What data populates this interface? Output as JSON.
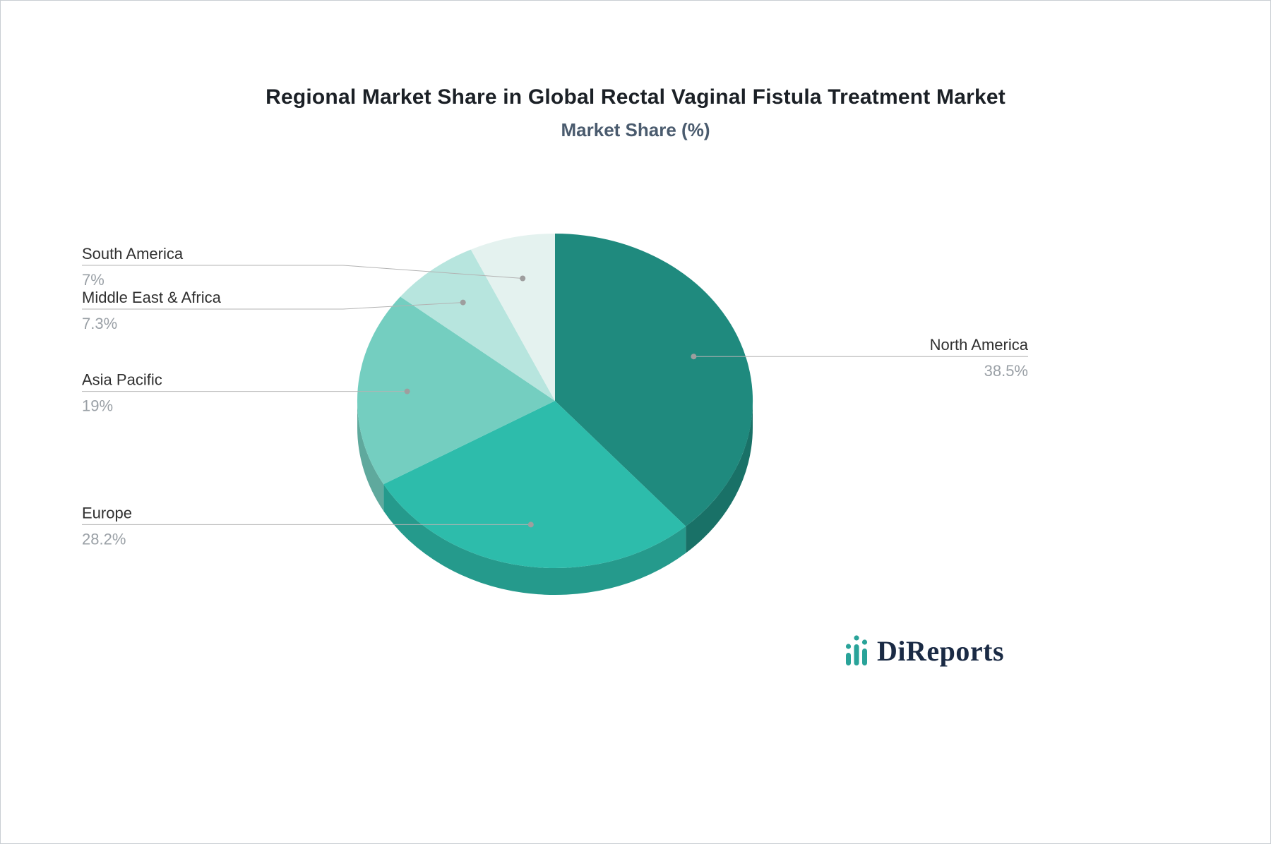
{
  "chart_data": {
    "type": "pie",
    "title": "Regional Market Share in Global Rectal Vaginal Fistula Treatment Market",
    "subtitle": "Market Share (%)",
    "unit": "%",
    "total": 100,
    "start_angle_deg": 0,
    "direction": "clockwise",
    "effect": "3d",
    "slices": [
      {
        "label": "North America",
        "value": 38.5,
        "display": "38.5%",
        "color": "#1f8a7e"
      },
      {
        "label": "Europe",
        "value": 28.2,
        "display": "28.2%",
        "color": "#2dbcab"
      },
      {
        "label": "Asia Pacific",
        "value": 19,
        "display": "19%",
        "color": "#74cec0"
      },
      {
        "label": "Middle East & Africa",
        "value": 7.3,
        "display": "7.3%",
        "color": "#b7e5de"
      },
      {
        "label": "South America",
        "value": 7,
        "display": "7%",
        "color": "#e4f2ef"
      }
    ],
    "colors": {
      "name": "#303030",
      "value": "#9aa0a6",
      "leader": "#b3b3b3",
      "dot": "#9e9e9e"
    }
  },
  "logo": {
    "text": "DiReports",
    "accent_color": "#29a399",
    "text_color": "#1a2a44"
  }
}
